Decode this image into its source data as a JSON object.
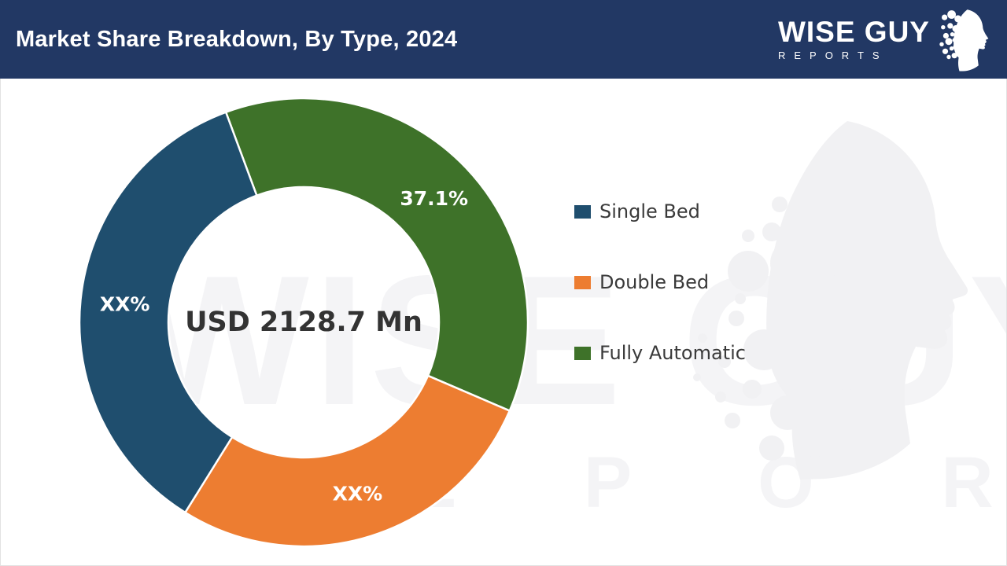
{
  "header": {
    "title": "Market Share Breakdown, By Type, 2024",
    "logo": {
      "line1": "WISE GUY",
      "line2": "REPORTS"
    }
  },
  "watermark": {
    "line1": "WISE GUY",
    "line2": "R E P O R T S"
  },
  "chart_data": {
    "type": "donut",
    "title": "Market Share Breakdown, By Type, 2024",
    "center_label": "USD 2128.7 Mn",
    "start_angle_deg": -20.3,
    "rotation": "clockwise",
    "legend_position": "right",
    "segments": [
      {
        "name": "Fully Automatic",
        "value_pct": 37.1,
        "label": "37.1%",
        "color": "#3e7229"
      },
      {
        "name": "Double Bed",
        "value_pct": 27.4,
        "label": "XX%",
        "color": "#ed7d31"
      },
      {
        "name": "Single Bed",
        "value_pct": 35.5,
        "label": "XX%",
        "color": "#1f4e6e"
      }
    ],
    "legend": [
      {
        "name": "Single Bed",
        "color": "#1f4e6e"
      },
      {
        "name": "Double Bed",
        "color": "#ed7d31"
      },
      {
        "name": "Fully Automatic",
        "color": "#3e7229"
      }
    ]
  },
  "colors": {
    "header_bg": "#223864",
    "center_text": "#333333",
    "slice_label_text": "#ffffff",
    "legend_text": "#3a3a3a",
    "watermark": "#f4f4f6"
  }
}
